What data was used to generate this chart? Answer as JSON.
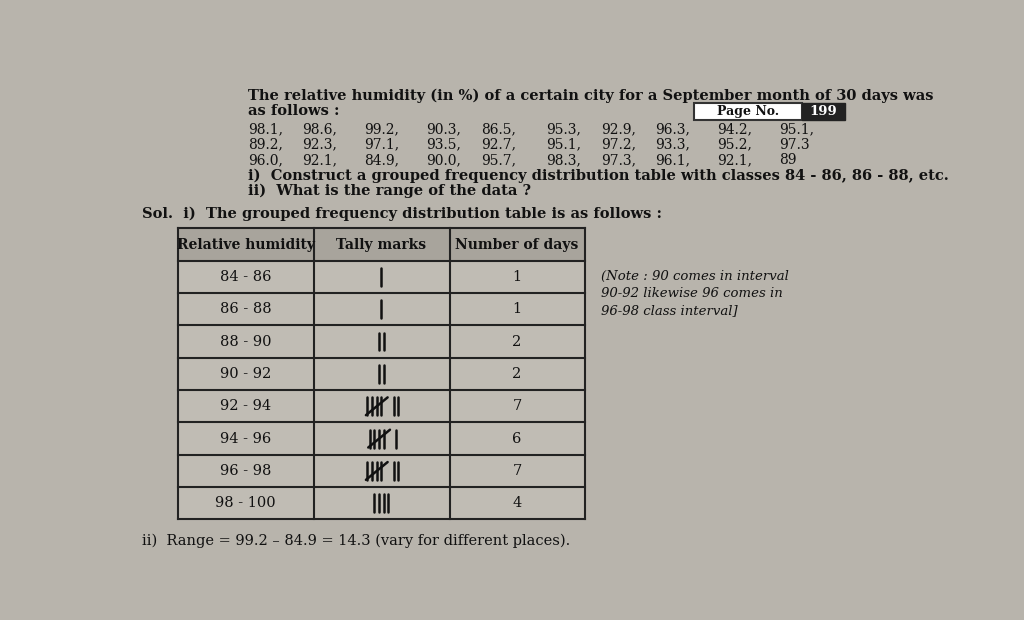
{
  "title_line1": "The relative humidity (in %) of a certain city for a September month of 30 days was",
  "title_line2": "as follows :",
  "page_no_label": "Page No.",
  "page_no_num": "199",
  "data_rows": [
    [
      "98.1,",
      "98.6,",
      "99.2,",
      "90.3,",
      "86.5,",
      "95.3,",
      "92.9,",
      "96.3,",
      "94.2,",
      "95.1,"
    ],
    [
      "89.2,",
      "92.3,",
      "97.1,",
      "93.5,",
      "92.7,",
      "95.1,",
      "97.2,",
      "93.3,",
      "95.2,",
      "97.3"
    ],
    [
      "96.0,",
      "92.1,",
      "84.9,",
      "90.0,",
      "95.7,",
      "98.3,",
      "97.3,",
      "96.1,",
      "92.1,",
      "89"
    ]
  ],
  "questions": [
    "i)  Construct a grouped frequency distribution table with classes 84 - 86, 86 - 88, etc.",
    "ii)  What is the range of the data ?"
  ],
  "sol_intro": "Sol.  i)  The grouped frequency distribution table is as follows :",
  "table_headers": [
    "Relative humidity",
    "Tally marks",
    "Number of days"
  ],
  "table_ranges": [
    "84 - 86",
    "86 - 88",
    "88 - 90",
    "90 - 92",
    "92 - 94",
    "94 - 96",
    "96 - 98",
    "98 - 100"
  ],
  "table_counts": [
    "1",
    "1",
    "2",
    "2",
    "7",
    "6",
    "7",
    "4"
  ],
  "note_lines": [
    "(Note : 90 comes in interval",
    "90-92 likewise 96 comes in",
    "96-98 class interval]"
  ],
  "sol_ii": "ii)  Range = 99.2 – 84.9 = 14.3 (vary for different places).",
  "bg_color": "#b8b4ac",
  "table_bg": "#c0bcb4",
  "text_color": "#111111",
  "border_color": "#222222"
}
